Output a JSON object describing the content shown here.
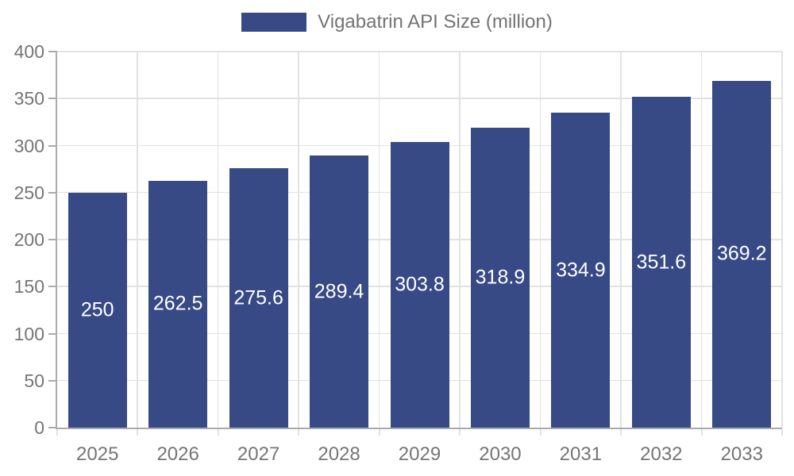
{
  "legend": {
    "label": "Vigabatrin API Size (million)"
  },
  "chart_data": {
    "type": "bar",
    "title": "Vigabatrin API Size (million)",
    "legend_entries": [
      "Vigabatrin API Size (million)"
    ],
    "legend_position": "top-center",
    "categories": [
      "2025",
      "2026",
      "2027",
      "2028",
      "2029",
      "2030",
      "2031",
      "2032",
      "2033"
    ],
    "values": [
      250,
      262.5,
      275.6,
      289.4,
      303.8,
      318.9,
      334.9,
      351.6,
      369.2
    ],
    "value_labels": [
      "250",
      "262.5",
      "275.6",
      "289.4",
      "303.8",
      "318.9",
      "334.9",
      "351.6",
      "369.2"
    ],
    "xlabel": "",
    "ylabel": "",
    "ylim": [
      0,
      400
    ],
    "yticks": [
      0,
      50,
      100,
      150,
      200,
      250,
      300,
      350,
      400
    ],
    "grid": true,
    "bar_color": "#384a86",
    "value_label_color": "#ffffff",
    "axis_text_color": "#757575",
    "grid_color": "#e2e2e2",
    "axis_line_color": "#aaaaaa",
    "background_color": "#ffffff"
  }
}
